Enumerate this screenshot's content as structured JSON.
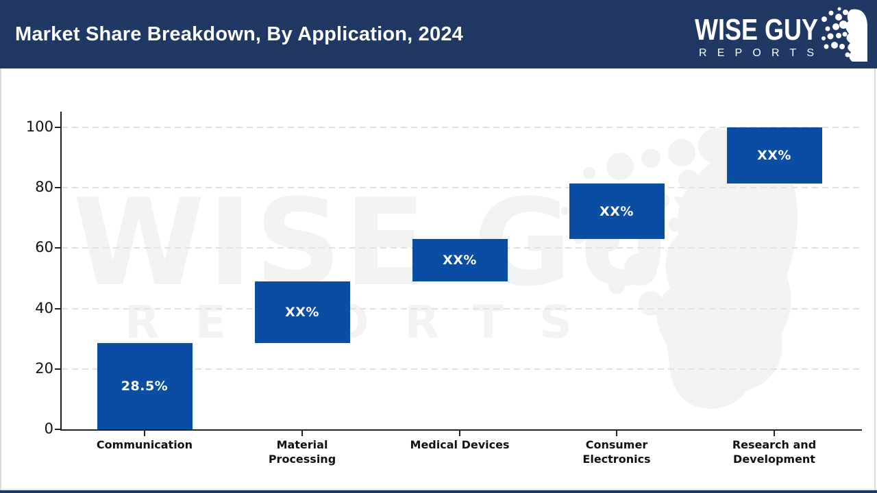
{
  "header": {
    "title": "Market Share Breakdown, By Application, 2024",
    "logo": {
      "line1": "WISE GUY",
      "line2": "REPORTS"
    }
  },
  "watermark": {
    "line1": "WISE GUY",
    "line2": "REPORTS"
  },
  "colors": {
    "header_bg": "#1f3864",
    "bar": "#0b4da2",
    "bar_label": "#ffffff",
    "axis": "#222222",
    "grid": "#e1e1e1",
    "watermark": "#f2f2f2",
    "title_text": "#ffffff"
  },
  "chart_data": {
    "type": "bar",
    "subtype": "waterfall",
    "title": "Market Share Breakdown, By Application, 2024",
    "xlabel": "",
    "ylabel": "",
    "ylim": [
      0,
      105
    ],
    "yticks": [
      0,
      20,
      40,
      60,
      80,
      100
    ],
    "grid": "horizontal-dashed",
    "legend": "none",
    "categories": [
      "Communication",
      "Material Processing",
      "Medical Devices",
      "Consumer Electronics",
      "Research and Development"
    ],
    "bars": [
      {
        "category": "Communication",
        "axis_label": "Communication",
        "from": 0,
        "to": 28.5,
        "label": "28.5%"
      },
      {
        "category": "Material Processing",
        "axis_label": "Material\nProcessing",
        "from": 28.5,
        "to": 49,
        "label": "XX%"
      },
      {
        "category": "Medical Devices",
        "axis_label": "Medical Devices",
        "from": 49,
        "to": 63,
        "label": "XX%"
      },
      {
        "category": "Consumer Electronics",
        "axis_label": "Consumer\nElectronics",
        "from": 63,
        "to": 81.5,
        "label": "XX%"
      },
      {
        "category": "Research and Development",
        "axis_label": "Research and\nDevelopment",
        "from": 81.5,
        "to": 100,
        "label": "XX%"
      }
    ]
  }
}
